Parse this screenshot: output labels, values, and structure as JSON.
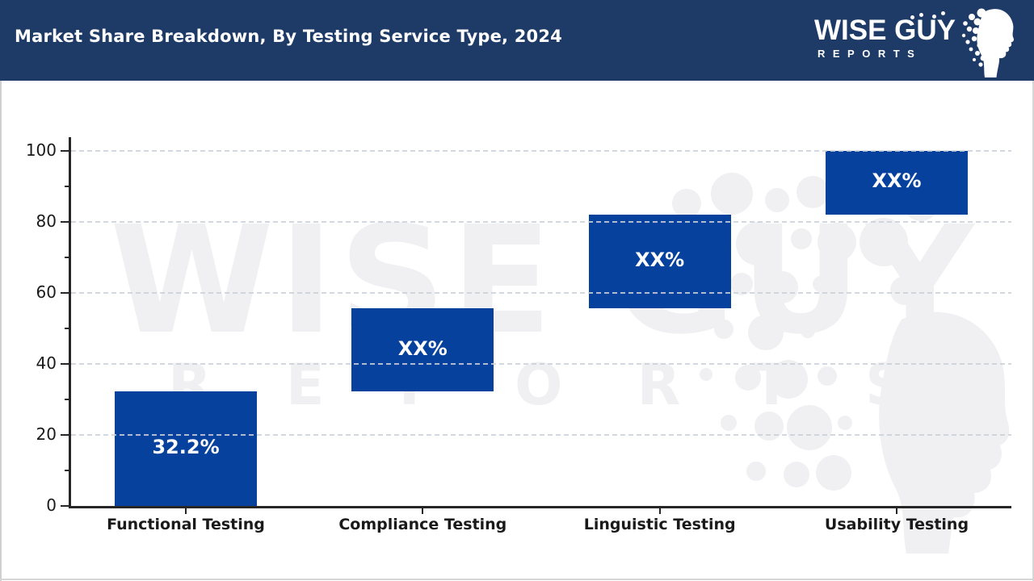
{
  "header": {
    "title": "Market Share Breakdown, By Testing Service Type, 2024",
    "logo": {
      "brand": "WISE GUY",
      "tagline": "REPORTS"
    }
  },
  "watermark": {
    "brand": "WISE GUY",
    "tagline": "REPORTS"
  },
  "colors": {
    "header_bg": "#1e3a66",
    "bar": "#06429d",
    "bar_label": "#ffffff",
    "axis": "#262626",
    "tick_label": "#1a1a1a",
    "gridline": "#d4d8df",
    "watermark": "#f0f0f3"
  },
  "chart_data": {
    "type": "bar",
    "subtype": "waterfall",
    "title": "Market Share Breakdown, By Testing Service Type, 2024",
    "categories": [
      "Functional Testing",
      "Compliance Testing",
      "Linguistic Testing",
      "Usability Testing"
    ],
    "segments": [
      {
        "category": "Functional Testing",
        "start": 0,
        "end": 32.2,
        "label": "32.2%"
      },
      {
        "category": "Compliance Testing",
        "start": 32.2,
        "end": 55.7,
        "label": "XX%"
      },
      {
        "category": "Linguistic Testing",
        "start": 55.7,
        "end": 82.1,
        "label": "XX%"
      },
      {
        "category": "Usability Testing",
        "start": 82.1,
        "end": 100,
        "label": "XX%"
      }
    ],
    "xlabel": "",
    "ylabel": "",
    "ylim": [
      0,
      100
    ],
    "yticks": [
      0,
      20,
      40,
      60,
      80,
      100
    ],
    "minor_ytick_step": 10,
    "grid": "horizontal-dashed",
    "legend": "none"
  }
}
